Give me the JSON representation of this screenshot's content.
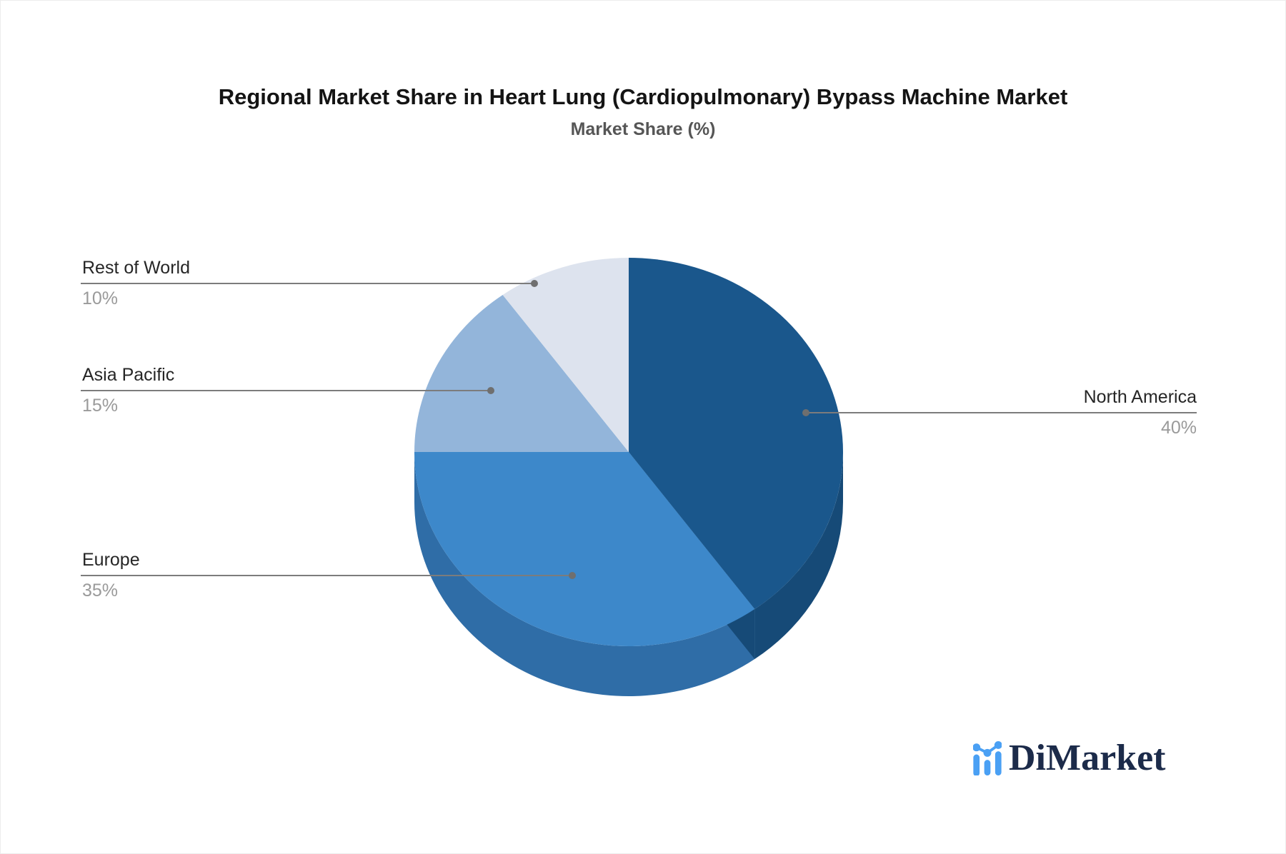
{
  "header": {
    "title": "Regional Market Share in Heart Lung (Cardiopulmonary) Bypass Machine Market",
    "subtitle": "Market Share (%)"
  },
  "chart_data": {
    "type": "pie",
    "style": "3d",
    "title": "Regional Market Share in Heart Lung (Cardiopulmonary) Bypass Machine Market",
    "subtitle": "Market Share (%)",
    "unit": "%",
    "start_angle_deg": 0,
    "direction": "clockwise",
    "legend": "none, leader-line labels",
    "slices": [
      {
        "key": "north-america",
        "name": "North America",
        "value": 40,
        "pct": "40%",
        "color": "#1a578c",
        "side_color": "#164a77"
      },
      {
        "key": "europe",
        "name": "Europe",
        "value": 35,
        "pct": "35%",
        "color": "#3d88ca",
        "side_color": "#2f6da7"
      },
      {
        "key": "asia-pacific",
        "name": "Asia Pacific",
        "value": 15,
        "pct": "15%",
        "color": "#93b5da",
        "side_color": "#7b9cc2"
      },
      {
        "key": "rest-of-world",
        "name": "Rest of World",
        "value": 10,
        "pct": "10%",
        "color": "#dde3ee",
        "side_color": "#bcc8d9"
      }
    ],
    "label_color": "#262626",
    "value_color": "#9a9a9a",
    "leader_line_color": "#7c7c7c",
    "leader_dot_color": "#6f6f6f"
  },
  "logo": {
    "text": "DiMarket",
    "icon": "bar-chart-trend-icon",
    "text_color": "#1c2b4a",
    "accent_color": "#4aa0f4"
  }
}
